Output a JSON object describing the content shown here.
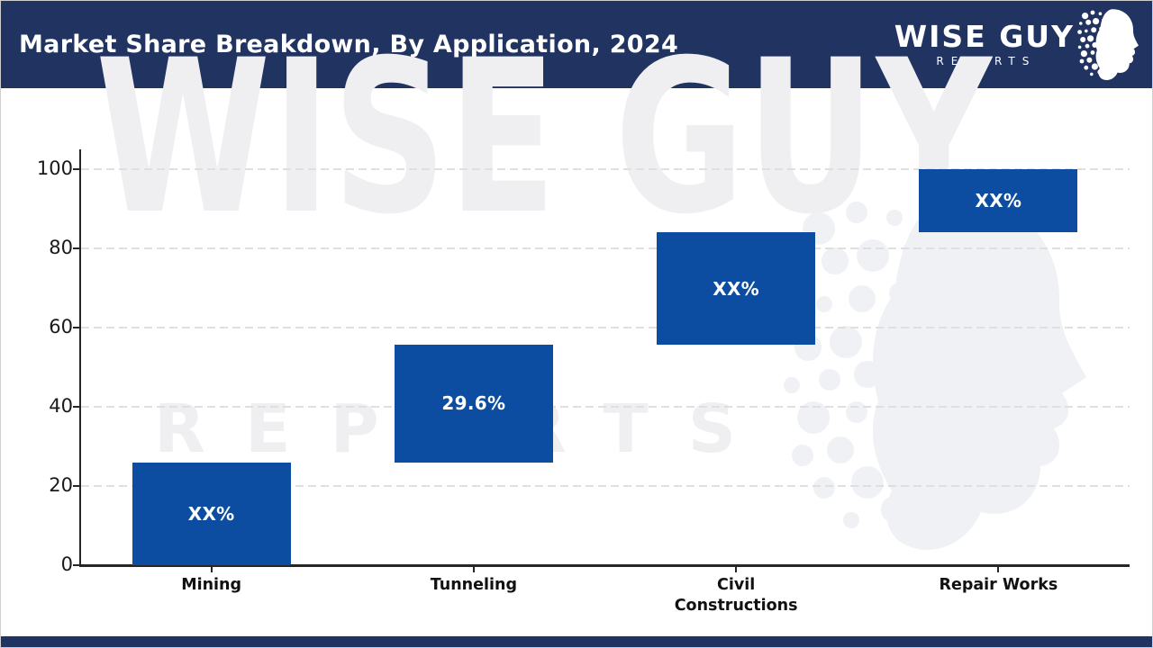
{
  "header": {
    "title": "Market Share Breakdown, By Application, 2024",
    "logo": {
      "line1": "WISE GUY",
      "line2": "REPORTS"
    }
  },
  "watermark": {
    "line1": "WISE GUY",
    "line2": "REPORTS"
  },
  "colors": {
    "header_bg": "#213361",
    "footer_bg": "#213361",
    "bar": "#0C4DA1",
    "bar_label_text": "#ffffff",
    "grid": "#dfdfdf",
    "axis": "#262626",
    "tick_text": "#1a1a1a",
    "watermark": "#efeff2",
    "page_bg": "#ffffff"
  },
  "chart_data": {
    "type": "bar",
    "subtype": "waterfall",
    "title": "Market Share Breakdown, By Application, 2024",
    "xlabel": "",
    "ylabel": "",
    "categories": [
      "Mining",
      "Tunneling",
      "Civil Constructions",
      "Repair Works"
    ],
    "series": [
      {
        "name": "Market Share",
        "segments": [
          {
            "category": "Mining",
            "from": 0,
            "to": 26,
            "label": "XX%"
          },
          {
            "category": "Tunneling",
            "from": 26,
            "to": 55.6,
            "label": "29.6%"
          },
          {
            "category": "Civil Constructions",
            "from": 55.6,
            "to": 84,
            "label": "XX%"
          },
          {
            "category": "Repair Works",
            "from": 84,
            "to": 100,
            "label": "XX%"
          }
        ]
      }
    ],
    "yticks": [
      0,
      20,
      40,
      60,
      80,
      100
    ],
    "ylim": [
      0,
      105
    ],
    "grid": "horizontal-dashed",
    "legend": "none"
  }
}
